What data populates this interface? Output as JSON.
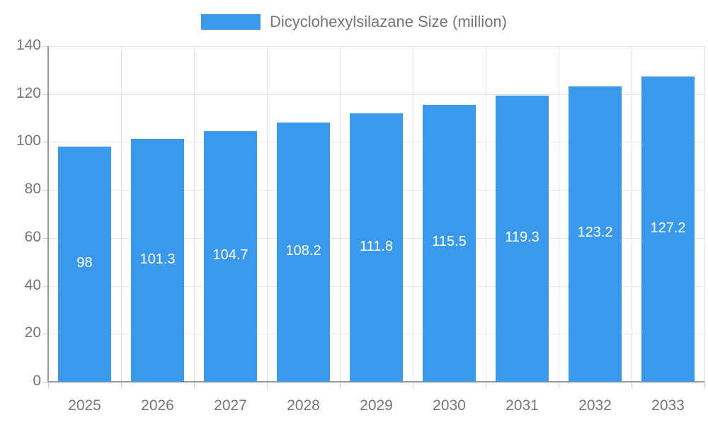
{
  "legend": {
    "label": "Dicyclohexylsilazane Size (million)"
  },
  "chart_data": {
    "type": "bar",
    "title": "Dicyclohexylsilazane Size (million)",
    "categories": [
      "2025",
      "2026",
      "2027",
      "2028",
      "2029",
      "2030",
      "2031",
      "2032",
      "2033"
    ],
    "values": [
      98,
      101.3,
      104.7,
      108.2,
      111.8,
      115.5,
      119.3,
      123.2,
      127.2
    ],
    "value_labels": [
      "98",
      "101.3",
      "104.7",
      "108.2",
      "111.8",
      "115.5",
      "119.3",
      "123.2",
      "127.2"
    ],
    "xlabel": "",
    "ylabel": "",
    "ylim": [
      0,
      140
    ],
    "y_ticks": [
      0,
      20,
      40,
      60,
      80,
      100,
      120,
      140
    ],
    "grid": true,
    "legend_position": "top",
    "colors": {
      "bar": "#3B99EC",
      "axis": "#999999",
      "grid": "#E4E4E4",
      "tick": "#CCCCCC",
      "axis_text": "#757575",
      "value_text": "#FFFFFF",
      "background": "#FFFFFF"
    }
  }
}
